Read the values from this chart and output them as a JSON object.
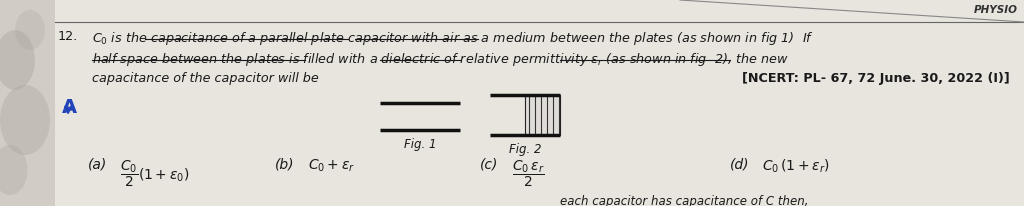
{
  "background_color": "#e8e4de",
  "paper_color": "#f0ede6",
  "text_color": "#1a1a1a",
  "dark_text": "#111111",
  "question_number": "12.",
  "main_text_line1": "$C_0$ is the capacitance of a parallel plate capacitor with air as a medium between the plates (as shown in fig 1)  If",
  "main_text_line2": "half space between the plates is filled with a dielectric of relative permittivity $\\varepsilon_r$ (as shown in fig  2), the new",
  "main_text_line3": "capacitance of the capacitor will be",
  "reference": "[NCERT: PL- 67, 72 June. 30, 2022 (I)]",
  "header_text": "PHYSIO",
  "fig1_label": "Fig. 1",
  "fig2_label": "Fig. 2",
  "opt_a_pre": "(a)",
  "opt_a_math": "$\\dfrac{C_0}{2}(1+\\varepsilon_0)$",
  "opt_b_pre": "(b)",
  "opt_b_math": "$C_0+\\varepsilon_r$",
  "opt_c_pre": "(c)",
  "opt_c_math": "$\\dfrac{C_0\\,\\varepsilon_r}{2}$",
  "opt_d_pre": "(d)",
  "opt_d_math": "$C_0\\,(1+\\varepsilon_r)$",
  "bottom_text": "each capacitor has capacitance of C then,",
  "arrow_label": "A",
  "fontsize_main": 9.2,
  "fontsize_ref": 9.2,
  "fontsize_header": 7.5,
  "fontsize_options": 10.0,
  "fontsize_fig": 8.5
}
